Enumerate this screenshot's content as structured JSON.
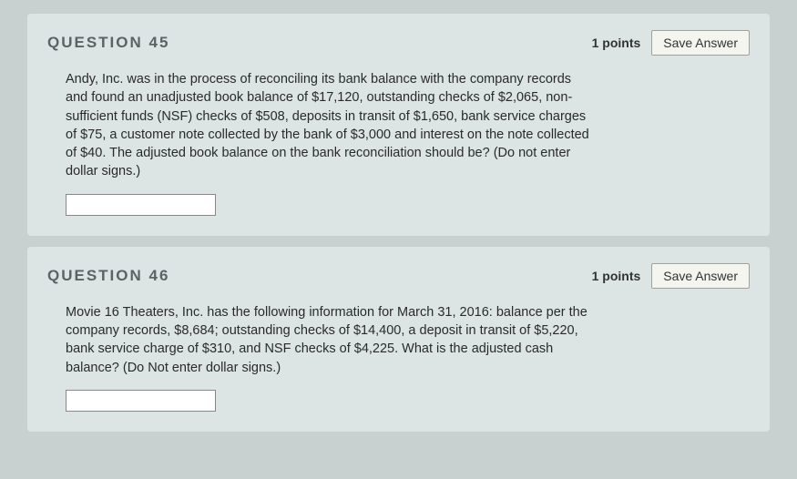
{
  "colors": {
    "page_background": "#c8d0d0",
    "block_background": "#dce4e4",
    "title_color": "#5a6464",
    "text_color": "#2a2a2a",
    "button_background": "#f5f5f0",
    "button_border": "#a0a0a0",
    "input_border": "#888888",
    "divider_color": "#b0b8b8"
  },
  "typography": {
    "title_fontsize": 17,
    "title_letter_spacing": 2,
    "body_fontsize": 14.5,
    "points_fontsize": 14,
    "button_fontsize": 14
  },
  "questions": [
    {
      "title": "QUESTION 45",
      "points": "1 points",
      "save_label": "Save Answer",
      "text": "Andy, Inc. was in the process of reconciling its bank balance with the company records and found an unadjusted book balance of $17,120, outstanding checks of $2,065, non-sufficient funds (NSF) checks of $508, deposits in transit of $1,650, bank service charges of $75, a customer note collected by the bank of $3,000 and interest on the note collected of $40. The adjusted book balance on the bank reconciliation should be? (Do not enter dollar signs.)",
      "answer_value": ""
    },
    {
      "title": "QUESTION 46",
      "points": "1 points",
      "save_label": "Save Answer",
      "text": "Movie 16 Theaters, Inc. has the following information for March 31, 2016: balance per the company records, $8,684; outstanding checks of $14,400, a deposit in transit of $5,220, bank service charge of $310, and NSF checks of $4,225. What is the adjusted cash balance? (Do Not enter dollar signs.)",
      "answer_value": ""
    }
  ]
}
